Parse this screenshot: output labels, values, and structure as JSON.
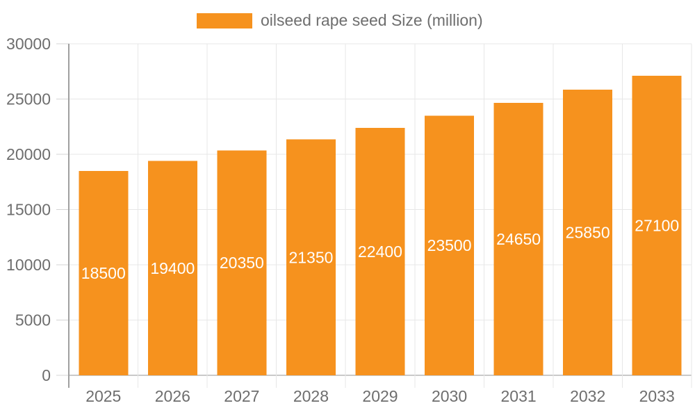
{
  "chart_data": {
    "type": "bar",
    "title": "",
    "legend": {
      "label": "oilseed rape seed Size (million)",
      "position": "top-center"
    },
    "categories": [
      "2025",
      "2026",
      "2027",
      "2028",
      "2029",
      "2030",
      "2031",
      "2032",
      "2033"
    ],
    "series": [
      {
        "name": "oilseed rape seed Size (million)",
        "values": [
          18500,
          19400,
          20350,
          21350,
          22400,
          23500,
          24650,
          25850,
          27100
        ]
      }
    ],
    "value_labels_shown": true,
    "xlabel": "",
    "ylabel": "",
    "ylim": [
      0,
      30000
    ],
    "yticks": [
      0,
      5000,
      10000,
      15000,
      20000,
      25000,
      30000
    ],
    "grid": "horizontal-and-vertical",
    "colors": {
      "bar": "#F6921E",
      "value_label": "#FFFFFF",
      "axis_text": "#6E6E6E",
      "legend_text": "#6E6E6E",
      "grid_line": "#E7E7E7",
      "baseline": "#C9C9C9",
      "tick_line": "#D4D4D4",
      "axis_line": "#A0A0A0",
      "background": "#FFFFFF"
    }
  }
}
